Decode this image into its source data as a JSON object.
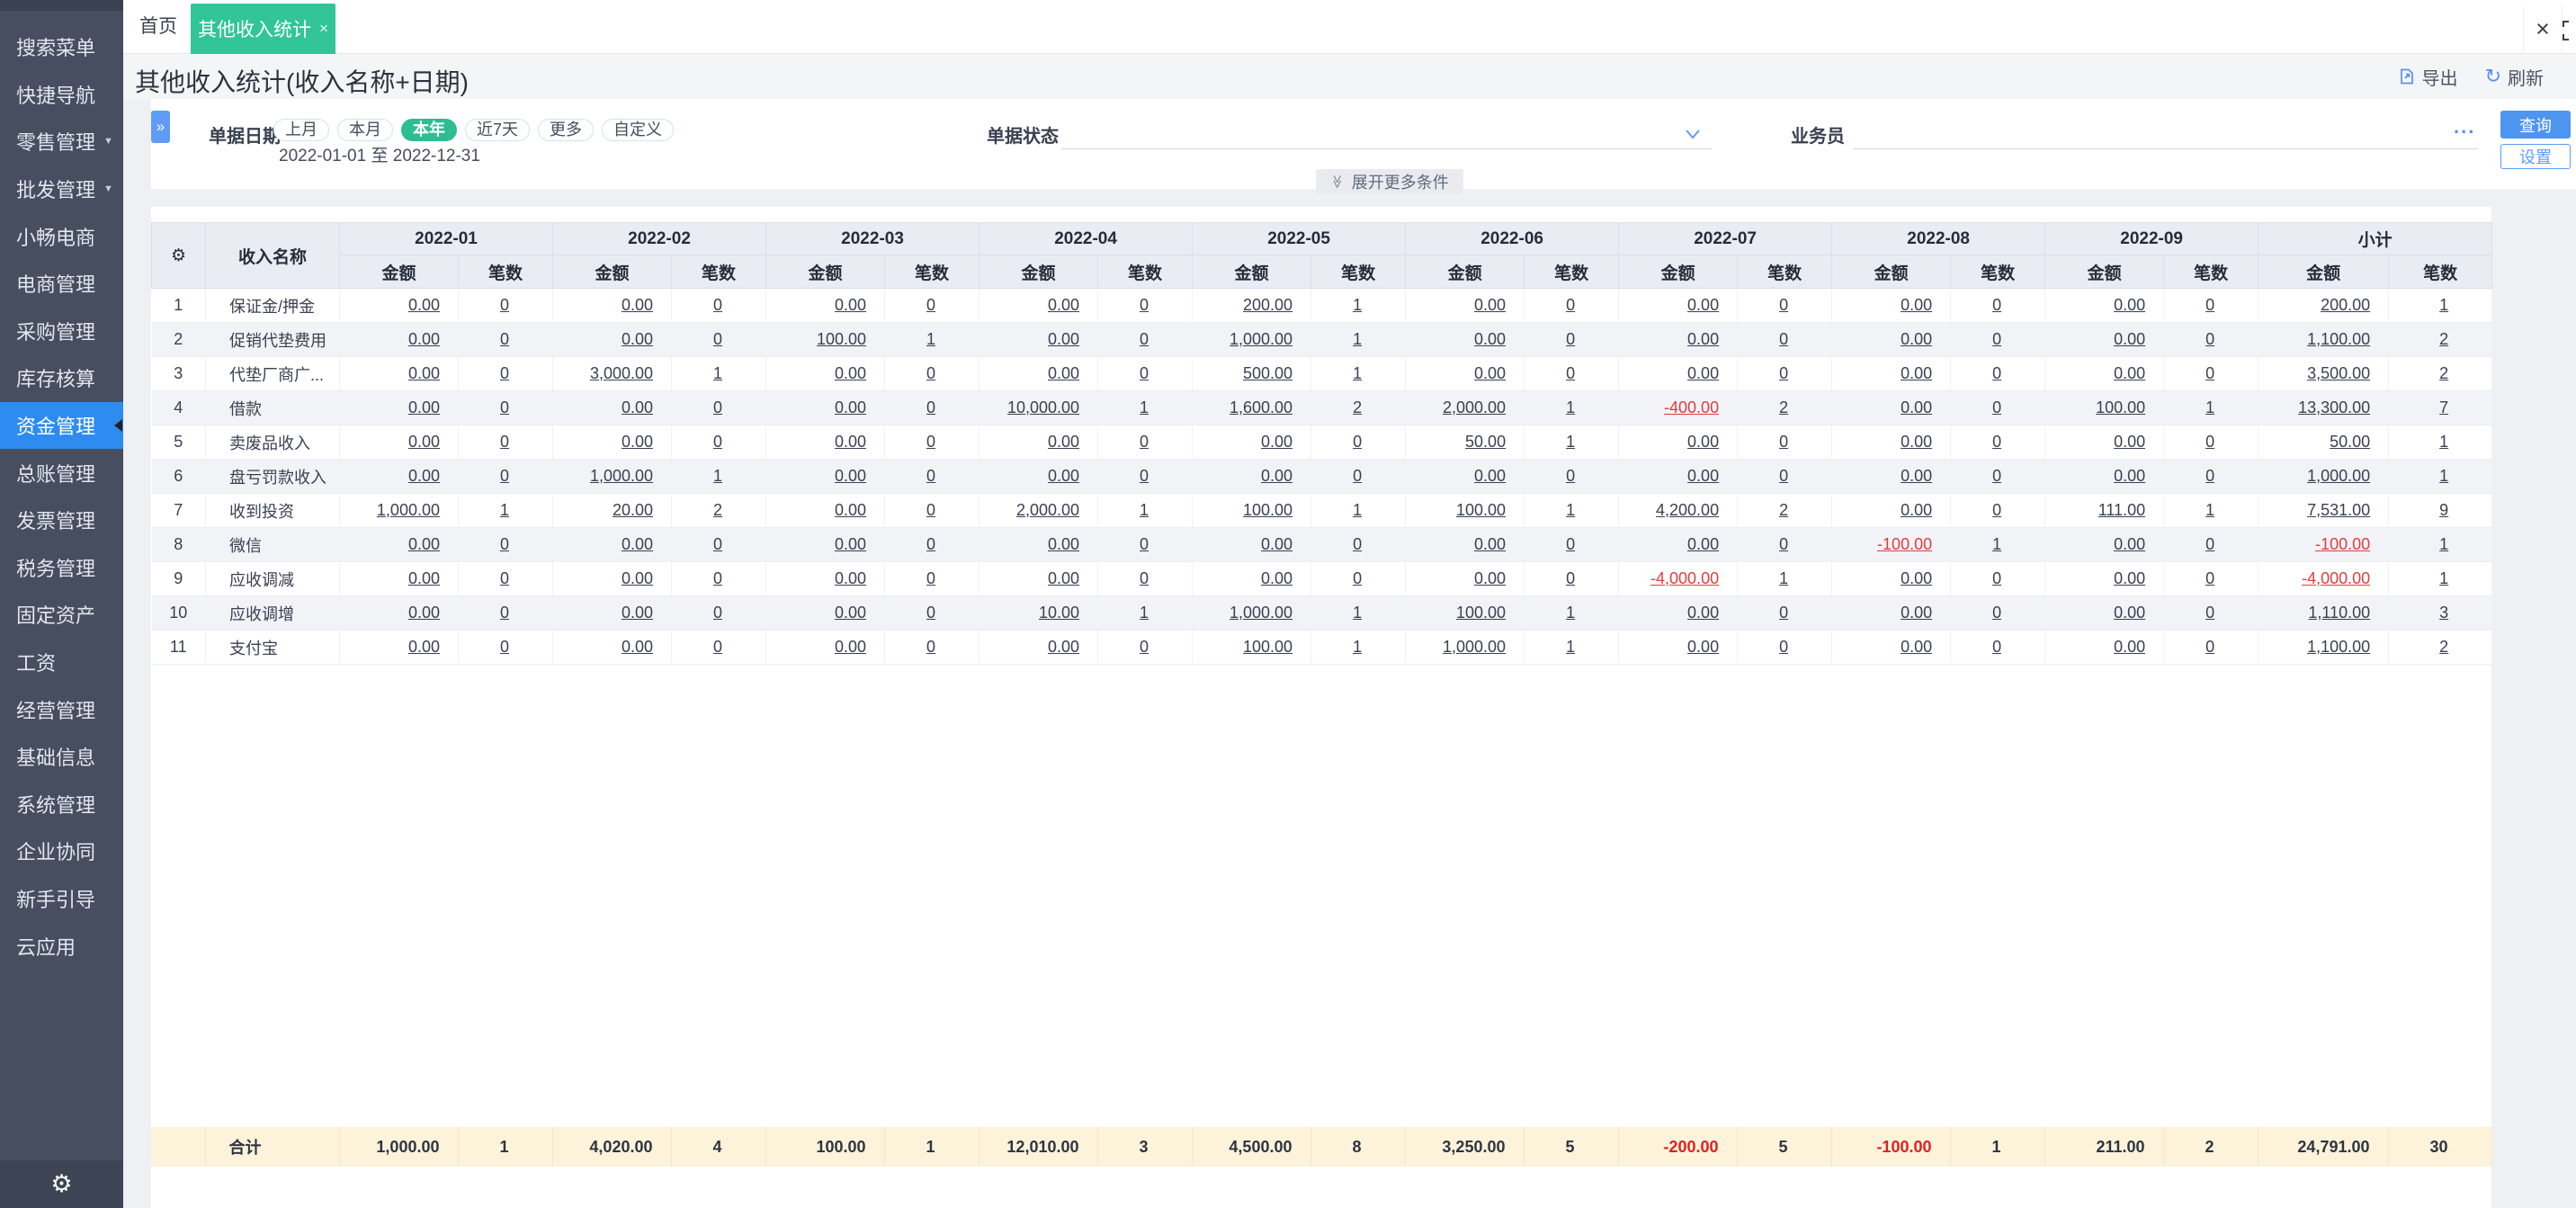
{
  "colors": {
    "sidebar_bg": "#474e60",
    "sidebar_active_blue": "#2e8cf0",
    "tab_green": "#32c596",
    "accent_blue": "#4e95f0",
    "pill_green": "#2dbd90",
    "negative_red": "#e23c3c",
    "footer_beige": "#fdf3db"
  },
  "sidebar": {
    "items": [
      {
        "label": "搜索菜单"
      },
      {
        "label": "快捷导航"
      },
      {
        "label": "零售管理",
        "caret": true
      },
      {
        "label": "批发管理",
        "caret": true
      },
      {
        "label": "小畅电商"
      },
      {
        "label": "电商管理"
      },
      {
        "label": "采购管理"
      },
      {
        "label": "库存核算"
      },
      {
        "label": "资金管理",
        "active": true
      },
      {
        "label": "总账管理"
      },
      {
        "label": "发票管理"
      },
      {
        "label": "税务管理"
      },
      {
        "label": "固定资产"
      },
      {
        "label": "工资"
      },
      {
        "label": "经营管理"
      },
      {
        "label": "基础信息"
      },
      {
        "label": "系统管理"
      },
      {
        "label": "企业协同"
      },
      {
        "label": "新手引导"
      },
      {
        "label": "云应用"
      }
    ],
    "footer_icon": "gear"
  },
  "tabs": {
    "home": "首页",
    "active": {
      "label": "其他收入统计",
      "close": "×"
    }
  },
  "header": {
    "title": "其他收入统计(收入名称+日期)",
    "export_label": "导出",
    "refresh_label": "刷新",
    "refresh_glyph": "↻"
  },
  "filters": {
    "date_label": "单据日期",
    "date_pills": [
      "上月",
      "本月",
      "本年",
      "近7天",
      "更多",
      "自定义"
    ],
    "date_active": "本年",
    "date_range": "2022-01-01 至 2022-12-31",
    "status_label": "单据状态",
    "salesman_label": "业务员",
    "more_label": "...",
    "query_label": "查询",
    "settings_label": "设置",
    "expand_more_label": "展开更多条件",
    "collapse_glyph": "»",
    "expand_more_glyph": "≫"
  },
  "table": {
    "name_header": "收入名称",
    "amount_header": "金额",
    "count_header": "笔数",
    "months": [
      "2022-01",
      "2022-02",
      "2022-03",
      "2022-04",
      "2022-05",
      "2022-06",
      "2022-07",
      "2022-08",
      "2022-09",
      "小计"
    ],
    "rows": [
      {
        "name": "保证金/押金",
        "cells": [
          [
            "0.00",
            "0"
          ],
          [
            "0.00",
            "0"
          ],
          [
            "0.00",
            "0"
          ],
          [
            "0.00",
            "0"
          ],
          [
            "200.00",
            "1"
          ],
          [
            "0.00",
            "0"
          ],
          [
            "0.00",
            "0"
          ],
          [
            "0.00",
            "0"
          ],
          [
            "0.00",
            "0"
          ],
          [
            "200.00",
            "1"
          ]
        ]
      },
      {
        "name": "促销代垫费用",
        "cells": [
          [
            "0.00",
            "0"
          ],
          [
            "0.00",
            "0"
          ],
          [
            "100.00",
            "1"
          ],
          [
            "0.00",
            "0"
          ],
          [
            "1,000.00",
            "1"
          ],
          [
            "0.00",
            "0"
          ],
          [
            "0.00",
            "0"
          ],
          [
            "0.00",
            "0"
          ],
          [
            "0.00",
            "0"
          ],
          [
            "1,100.00",
            "2"
          ]
        ]
      },
      {
        "name": "代垫厂商广...",
        "cells": [
          [
            "0.00",
            "0"
          ],
          [
            "3,000.00",
            "1"
          ],
          [
            "0.00",
            "0"
          ],
          [
            "0.00",
            "0"
          ],
          [
            "500.00",
            "1"
          ],
          [
            "0.00",
            "0"
          ],
          [
            "0.00",
            "0"
          ],
          [
            "0.00",
            "0"
          ],
          [
            "0.00",
            "0"
          ],
          [
            "3,500.00",
            "2"
          ]
        ]
      },
      {
        "name": "借款",
        "cells": [
          [
            "0.00",
            "0"
          ],
          [
            "0.00",
            "0"
          ],
          [
            "0.00",
            "0"
          ],
          [
            "10,000.00",
            "1"
          ],
          [
            "1,600.00",
            "2"
          ],
          [
            "2,000.00",
            "1"
          ],
          [
            "-400.00",
            "2"
          ],
          [
            "0.00",
            "0"
          ],
          [
            "100.00",
            "1"
          ],
          [
            "13,300.00",
            "7"
          ]
        ]
      },
      {
        "name": "卖废品收入",
        "cells": [
          [
            "0.00",
            "0"
          ],
          [
            "0.00",
            "0"
          ],
          [
            "0.00",
            "0"
          ],
          [
            "0.00",
            "0"
          ],
          [
            "0.00",
            "0"
          ],
          [
            "50.00",
            "1"
          ],
          [
            "0.00",
            "0"
          ],
          [
            "0.00",
            "0"
          ],
          [
            "0.00",
            "0"
          ],
          [
            "50.00",
            "1"
          ]
        ]
      },
      {
        "name": "盘亏罚款收入",
        "cells": [
          [
            "0.00",
            "0"
          ],
          [
            "1,000.00",
            "1"
          ],
          [
            "0.00",
            "0"
          ],
          [
            "0.00",
            "0"
          ],
          [
            "0.00",
            "0"
          ],
          [
            "0.00",
            "0"
          ],
          [
            "0.00",
            "0"
          ],
          [
            "0.00",
            "0"
          ],
          [
            "0.00",
            "0"
          ],
          [
            "1,000.00",
            "1"
          ]
        ]
      },
      {
        "name": "收到投资",
        "cells": [
          [
            "1,000.00",
            "1"
          ],
          [
            "20.00",
            "2"
          ],
          [
            "0.00",
            "0"
          ],
          [
            "2,000.00",
            "1"
          ],
          [
            "100.00",
            "1"
          ],
          [
            "100.00",
            "1"
          ],
          [
            "4,200.00",
            "2"
          ],
          [
            "0.00",
            "0"
          ],
          [
            "111.00",
            "1"
          ],
          [
            "7,531.00",
            "9"
          ]
        ]
      },
      {
        "name": "微信",
        "cells": [
          [
            "0.00",
            "0"
          ],
          [
            "0.00",
            "0"
          ],
          [
            "0.00",
            "0"
          ],
          [
            "0.00",
            "0"
          ],
          [
            "0.00",
            "0"
          ],
          [
            "0.00",
            "0"
          ],
          [
            "0.00",
            "0"
          ],
          [
            "-100.00",
            "1"
          ],
          [
            "0.00",
            "0"
          ],
          [
            "-100.00",
            "1"
          ]
        ]
      },
      {
        "name": "应收调减",
        "cells": [
          [
            "0.00",
            "0"
          ],
          [
            "0.00",
            "0"
          ],
          [
            "0.00",
            "0"
          ],
          [
            "0.00",
            "0"
          ],
          [
            "0.00",
            "0"
          ],
          [
            "0.00",
            "0"
          ],
          [
            "-4,000.00",
            "1"
          ],
          [
            "0.00",
            "0"
          ],
          [
            "0.00",
            "0"
          ],
          [
            "-4,000.00",
            "1"
          ]
        ]
      },
      {
        "name": "应收调增",
        "cells": [
          [
            "0.00",
            "0"
          ],
          [
            "0.00",
            "0"
          ],
          [
            "0.00",
            "0"
          ],
          [
            "10.00",
            "1"
          ],
          [
            "1,000.00",
            "1"
          ],
          [
            "100.00",
            "1"
          ],
          [
            "0.00",
            "0"
          ],
          [
            "0.00",
            "0"
          ],
          [
            "0.00",
            "0"
          ],
          [
            "1,110.00",
            "3"
          ]
        ]
      },
      {
        "name": "支付宝",
        "cells": [
          [
            "0.00",
            "0"
          ],
          [
            "0.00",
            "0"
          ],
          [
            "0.00",
            "0"
          ],
          [
            "0.00",
            "0"
          ],
          [
            "100.00",
            "1"
          ],
          [
            "1,000.00",
            "1"
          ],
          [
            "0.00",
            "0"
          ],
          [
            "0.00",
            "0"
          ],
          [
            "0.00",
            "0"
          ],
          [
            "1,100.00",
            "2"
          ]
        ]
      }
    ],
    "footer_label": "合计",
    "footer": [
      [
        "1,000.00",
        "1"
      ],
      [
        "4,020.00",
        "4"
      ],
      [
        "100.00",
        "1"
      ],
      [
        "12,010.00",
        "3"
      ],
      [
        "4,500.00",
        "8"
      ],
      [
        "3,250.00",
        "5"
      ],
      [
        "-200.00",
        "5"
      ],
      [
        "-100.00",
        "1"
      ],
      [
        "211.00",
        "2"
      ],
      [
        "24,791.00",
        "30"
      ]
    ]
  }
}
